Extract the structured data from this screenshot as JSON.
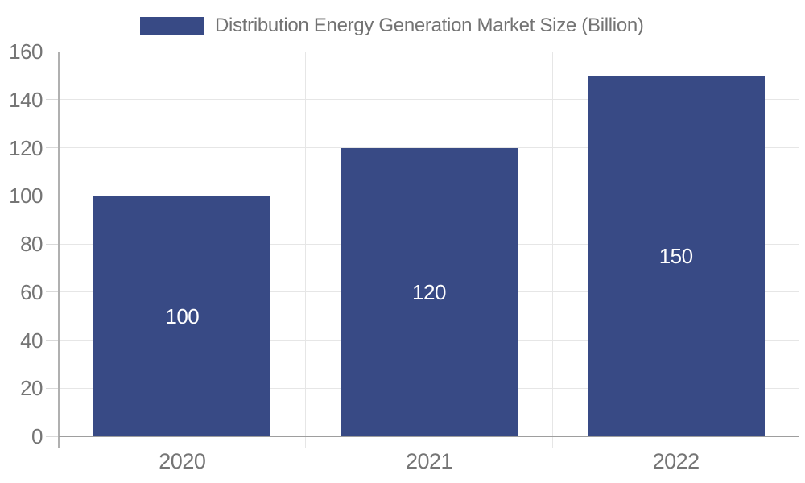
{
  "chart_data": {
    "type": "bar",
    "title": "Distribution Energy Generation Market Size (Billion)",
    "categories": [
      "2020",
      "2021",
      "2022"
    ],
    "values": [
      100,
      120,
      150
    ],
    "series": [
      {
        "name": "Distribution Energy Generation Market Size (Billion)",
        "values": [
          100,
          120,
          150
        ]
      }
    ],
    "xlabel": "",
    "ylabel": "",
    "ylim": [
      0,
      160
    ],
    "yticks": [
      0,
      20,
      40,
      60,
      80,
      100,
      120,
      140,
      160
    ],
    "grid": true,
    "legend_position": "top",
    "bar_value_labels_visible": true,
    "colors": {
      "bar": "#384A85",
      "bar_label": "#ffffff",
      "axis_text": "#757575",
      "legend_text": "#737373",
      "grid_line": "#e6e6e6",
      "tick_line": "#d9d9d9",
      "axis_line": "#9e9e9e",
      "y_axis_line": "#b0b0b0",
      "right_border": "#e0e0e0",
      "background": "#ffffff"
    }
  }
}
